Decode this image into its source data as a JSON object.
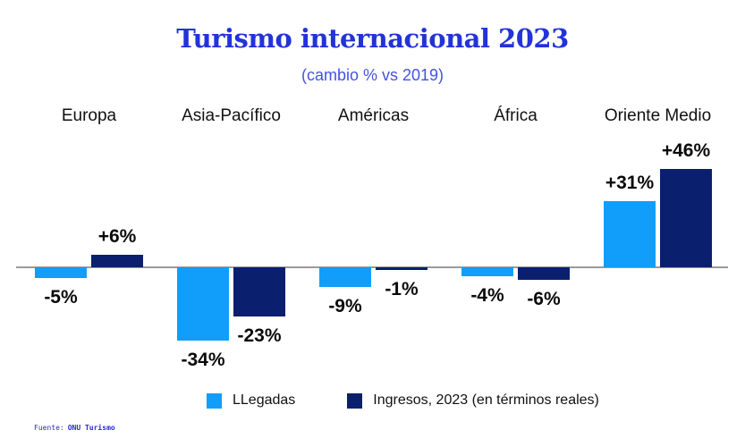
{
  "title": "Turismo internacional 2023",
  "subtitle": "(cambio % vs 2019)",
  "source": {
    "prefix": "Fuente:",
    "name": "ONU Turismo"
  },
  "colors": {
    "arrivals": "#109efa",
    "receipts": "#0a1f6e",
    "title_blue": "#2233d9",
    "subtitle_blue": "#4453e0",
    "axis_gray": "#9b9b9b",
    "label_black": "#0a0a0a",
    "source_blue": "#2a2acc"
  },
  "chart_data": {
    "type": "bar",
    "title": "Turismo internacional 2023",
    "subtitle": "(cambio % vs 2019)",
    "unit": "%",
    "baseline": 0,
    "grid": false,
    "legend_position": "bottom",
    "categories": [
      "Europa",
      "Asia-Pacífico",
      "Américas",
      "África",
      "Oriente Medio"
    ],
    "series": [
      {
        "name": "LLegadas",
        "color": "#109efa",
        "values": [
          -5,
          -34,
          -9,
          -4,
          31
        ]
      },
      {
        "name": "Ingresos, 2023 (en términos reales)",
        "color": "#0a1f6e",
        "values": [
          6,
          -23,
          -1,
          -6,
          46
        ]
      }
    ],
    "value_labels": [
      [
        "-5%",
        "-34%",
        "-9%",
        "-4%",
        "+31%"
      ],
      [
        "+6%",
        "-23%",
        "-1%",
        "-6%",
        "+46%"
      ]
    ]
  }
}
